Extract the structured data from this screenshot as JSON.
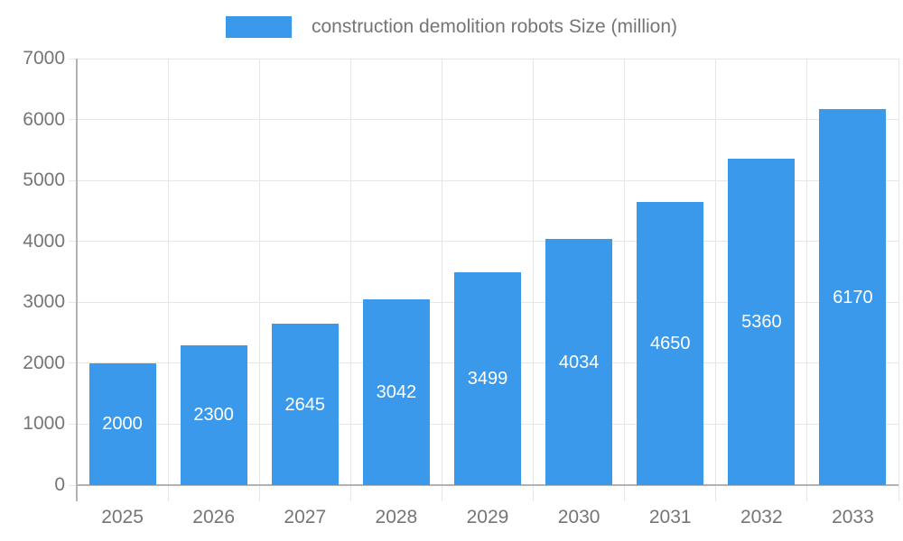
{
  "legend": {
    "label": "construction demolition robots Size (million)"
  },
  "colors": {
    "bar": "#3b99ec",
    "grid": "#e6e6e6",
    "axis": "#b3b3b3",
    "text": "#757575",
    "bar_label": "#ffffff"
  },
  "chart_data": {
    "type": "bar",
    "title": "",
    "legend": "construction demolition robots Size (million)",
    "legend_position": "top-center",
    "categories": [
      "2025",
      "2026",
      "2027",
      "2028",
      "2029",
      "2030",
      "2031",
      "2032",
      "2033"
    ],
    "values": [
      2000,
      2300,
      2645,
      3042,
      3499,
      4034,
      4650,
      5360,
      6170
    ],
    "series_name": "construction demolition robots Size (million)",
    "xlabel": "",
    "ylabel": "",
    "ylim": [
      0,
      7000
    ],
    "yticks": [
      0,
      1000,
      2000,
      3000,
      4000,
      5000,
      6000,
      7000
    ],
    "grid": true,
    "data_labels": "inside-center-white"
  }
}
